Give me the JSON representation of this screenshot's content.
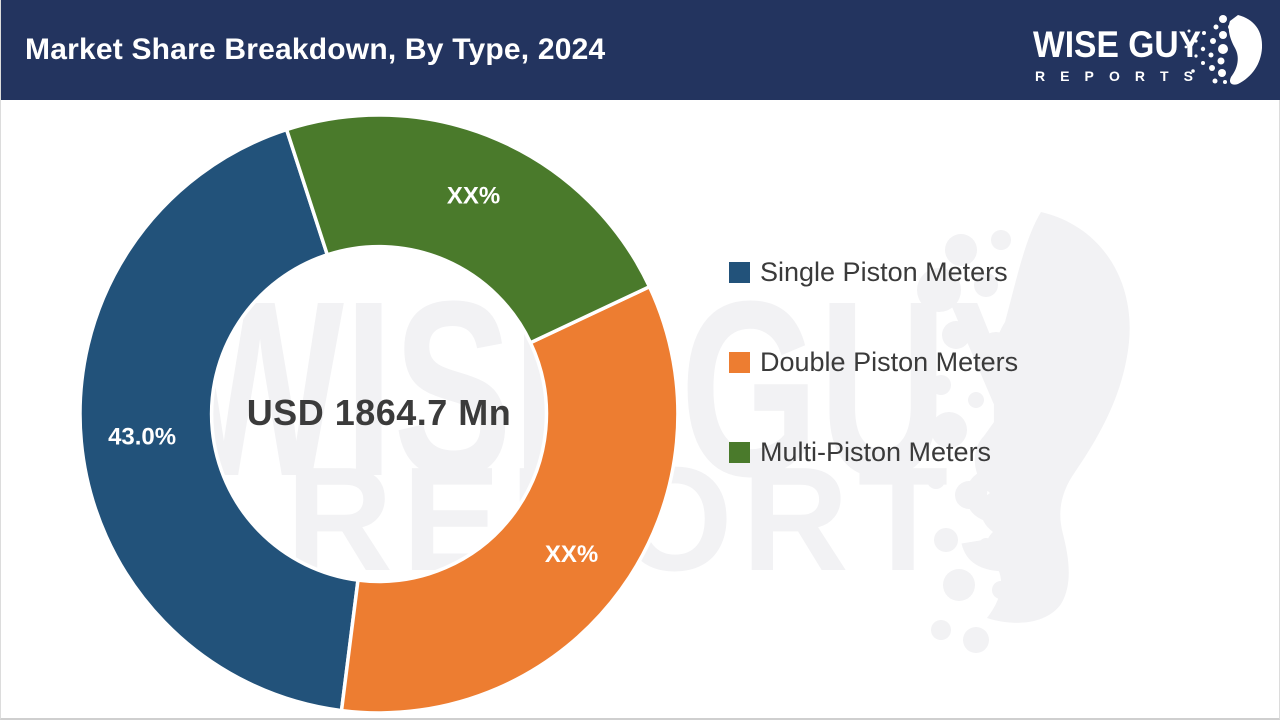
{
  "header": {
    "title": "Market Share Breakdown, By Type, 2024",
    "logo": {
      "line1": "WISE GUY",
      "line2": "REPORTS"
    }
  },
  "watermark": {
    "line1": "WISE GUY",
    "line2": "REPORTS"
  },
  "chart_data": {
    "type": "pie",
    "subtype": "donut",
    "title": "Market Share Breakdown, By Type, 2024",
    "center_label": "USD 1864.7 Mn",
    "legend_position": "right",
    "start_angle_deg": 108,
    "direction": "counterclockwise",
    "hole_radius_fraction": 0.56,
    "series": [
      {
        "name": "Single Piston Meters",
        "slice_label": "43.0%",
        "pct": 43.0,
        "color": "#22527A"
      },
      {
        "name": "Double Piston Meters",
        "slice_label": "XX%",
        "pct": 34.0,
        "color": "#ED7D31"
      },
      {
        "name": "Multi-Piston Meters",
        "slice_label": "XX%",
        "pct": 23.0,
        "color": "#4A7A2B"
      }
    ]
  }
}
